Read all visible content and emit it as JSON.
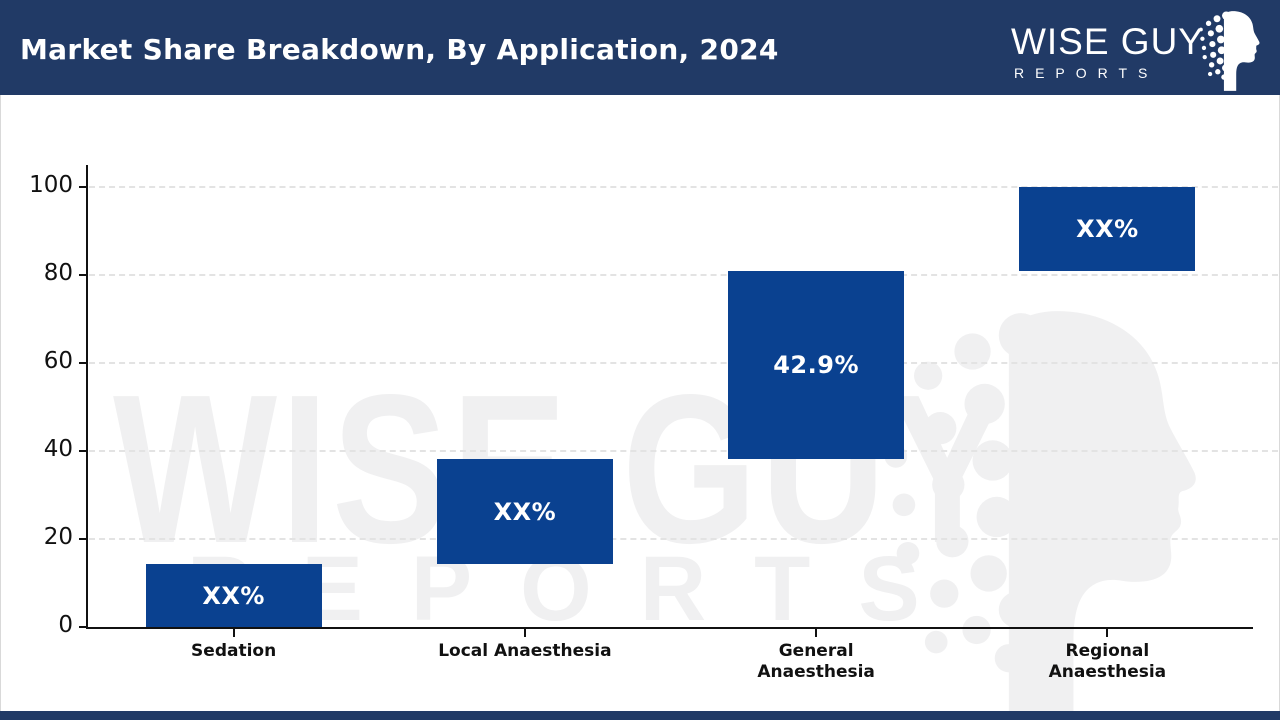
{
  "header": {
    "title": "Market Share Breakdown, By Application, 2024",
    "logo": {
      "wordmark": "WISE GUY",
      "subtitle": "REPORTS"
    }
  },
  "watermark": {
    "line1": "WISE GUY",
    "line2": "REPORTS"
  },
  "colors": {
    "header_bg": "#213a66",
    "footer_bg": "#213a66",
    "bar": "#0a4190",
    "bar_label": "#ffffff",
    "axis": "#111111",
    "grid": "#e3e3e3",
    "watermark": "#f0f0f1",
    "logo": "#ffffff"
  },
  "chart_data": {
    "type": "bar",
    "subtype": "floating-waterfall",
    "title": "Market Share Breakdown, By Application, 2024",
    "categories": [
      "Sedation",
      "Local Anaesthesia",
      "General Anaesthesia",
      "Regional Anaesthesia"
    ],
    "xtick_labels": [
      "Sedation",
      "Local Anaesthesia",
      "General\nAnaesthesia",
      "Regional\nAnaesthesia"
    ],
    "segments": [
      {
        "category": "Sedation",
        "start": 0,
        "end": 14.3,
        "label": "XX%"
      },
      {
        "category": "Local Anaesthesia",
        "start": 14.3,
        "end": 38.1,
        "label": "XX%"
      },
      {
        "category": "General Anaesthesia",
        "start": 38.1,
        "end": 81.0,
        "label": "42.9%"
      },
      {
        "category": "Regional Anaesthesia",
        "start": 81.0,
        "end": 100.0,
        "label": "XX%"
      }
    ],
    "ylim": [
      0,
      100
    ],
    "yticks": [
      0,
      20,
      40,
      60,
      80,
      100
    ],
    "grid": true,
    "legend": null,
    "xlabel": "",
    "ylabel": ""
  }
}
